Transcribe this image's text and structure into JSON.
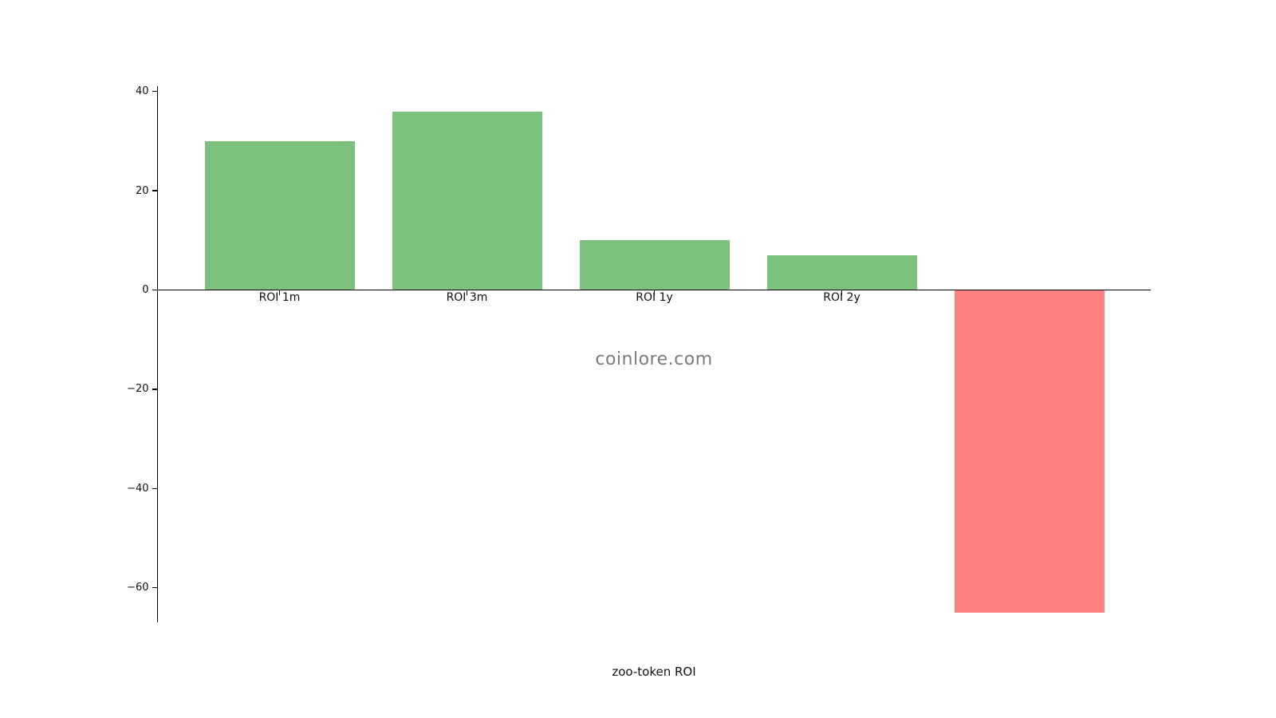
{
  "chart_data": {
    "type": "bar",
    "title": "zoo-token ROI",
    "watermark": "coinlore.com",
    "categories": [
      "ROI 1m",
      "ROI 3m",
      "ROI 1y",
      "ROI 2y",
      ""
    ],
    "values": [
      30,
      36,
      10,
      7,
      -65
    ],
    "bar_colors": [
      "#7cc17c",
      "#7cc17c",
      "#7cc17c",
      "#7cc17c",
      "#ff8080"
    ],
    "positive_color": "#7cc17c",
    "negative_color": "#ff8080",
    "yticks": [
      40,
      20,
      0,
      -20,
      -40,
      -60
    ],
    "ylim": [
      -67,
      41
    ],
    "xlabel": "",
    "ylabel": "",
    "grid": false,
    "legend": null,
    "axis_color": "#000000",
    "text_color": "#111111",
    "watermark_color": "#7b7b7b"
  }
}
